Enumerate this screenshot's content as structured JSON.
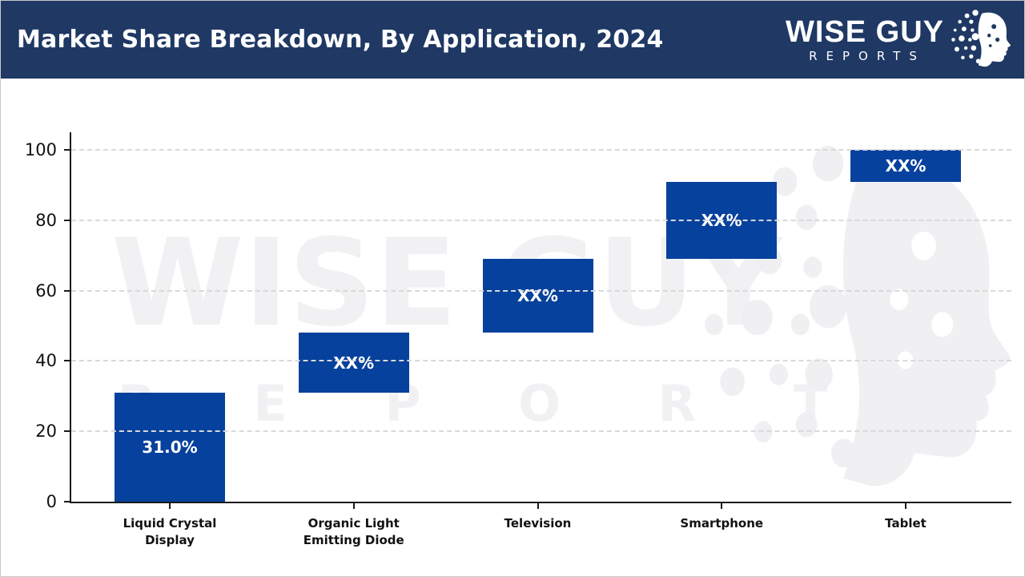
{
  "header": {
    "title": "Market Share Breakdown, By Application, 2024",
    "logo": {
      "wordmark": "WISE GUY",
      "subtitle": "REPORTS"
    }
  },
  "watermark": {
    "line1": "WISE GUY",
    "line2": "R E P O R T S"
  },
  "chart_data": {
    "type": "bar",
    "subtype": "waterfall",
    "title": "Market Share Breakdown, By Application, 2024",
    "xlabel": "",
    "ylabel": "",
    "units": "percent",
    "categories": [
      "Liquid Crystal\nDisplay",
      "Organic Light\nEmitting Diode",
      "Television",
      "Smartphone",
      "Tablet"
    ],
    "segments": [
      {
        "category": "Liquid Crystal Display",
        "start": 0,
        "end": 31,
        "label": "31.0%"
      },
      {
        "category": "Organic Light Emitting Diode",
        "start": 31,
        "end": 48,
        "label": "XX%"
      },
      {
        "category": "Television",
        "start": 48,
        "end": 69,
        "label": "XX%"
      },
      {
        "category": "Smartphone",
        "start": 69,
        "end": 91,
        "label": "XX%"
      },
      {
        "category": "Tablet",
        "start": 91,
        "end": 100,
        "label": "XX%"
      }
    ],
    "yticks": [
      0,
      20,
      40,
      60,
      80,
      100
    ],
    "ylim": [
      0,
      105
    ],
    "grid": "horizontal-dashed",
    "legend": "none",
    "colors": {
      "bar": "#06419d",
      "header_bg": "#1f3864",
      "watermark": "#f1f1f4",
      "gridline": "#d9d9d9",
      "axis": "#1a1a1a",
      "bar_label_text": "#ffffff"
    }
  }
}
